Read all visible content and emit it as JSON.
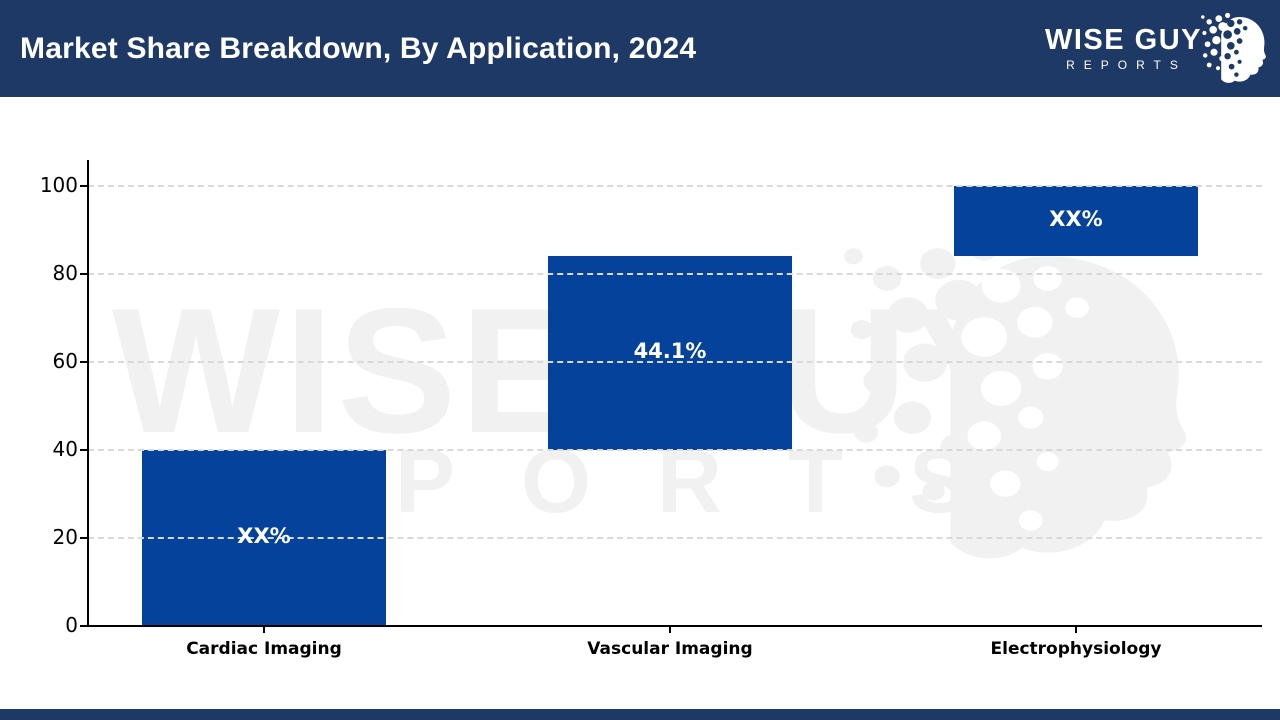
{
  "header": {
    "title": "Market Share Breakdown, By Application, 2024",
    "logo": {
      "line1": "WISE GUY",
      "line2": "REPORTS"
    }
  },
  "watermark": {
    "line1": "WISE GUY",
    "line2": "REPORTS"
  },
  "chart_data": {
    "type": "bar",
    "subtype": "floating-segment (waterfall-style) market share breakdown",
    "title": "Market Share Breakdown, By Application, 2024",
    "categories": [
      "Cardiac Imaging",
      "Vascular Imaging",
      "Electrophysiology"
    ],
    "series": [
      {
        "name": "Market share (%)",
        "segments": [
          {
            "category": "Cardiac Imaging",
            "start": 0,
            "end": 40,
            "size": 40.0,
            "label": "XX%"
          },
          {
            "category": "Vascular Imaging",
            "start": 40,
            "end": 84.1,
            "size": 44.1,
            "label": "44.1%"
          },
          {
            "category": "Electrophysiology",
            "start": 84.1,
            "end": 100,
            "size": 15.9,
            "label": "XX%"
          }
        ]
      }
    ],
    "xlabel": "",
    "ylabel": "",
    "ylim": [
      0,
      100
    ],
    "yticks": [
      0,
      20,
      40,
      60,
      80,
      100
    ],
    "grid": "horizontal dashed, drawn above bars",
    "legend": "none"
  },
  "colors": {
    "header_bg": "#1e3966",
    "footer_bg": "#1e3966",
    "bar_fill": "#05429b",
    "bar_label_text": "#ffffff",
    "gridline": "#d9d9d9",
    "axis_text": "#000000",
    "watermark": "#f1f1f2",
    "title_text": "#ffffff"
  }
}
